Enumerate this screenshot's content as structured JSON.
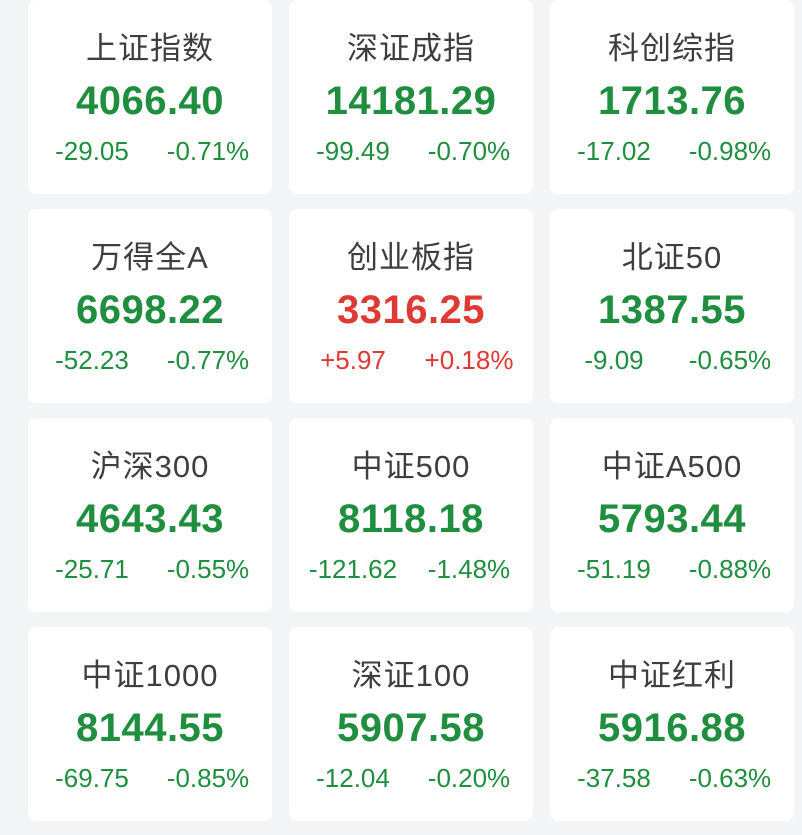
{
  "page": {
    "background_color": "#f3f4f6",
    "card_background_color": "#ffffff"
  },
  "colors": {
    "down_green": "#1f8e3e",
    "up_red": "#de3a33",
    "index_name_text": "#3e3e3e"
  },
  "indices": [
    {
      "name": "上证指数",
      "value": "4066.40",
      "change": "-29.05",
      "change_pct": "-0.71%",
      "direction": "down"
    },
    {
      "name": "深证成指",
      "value": "14181.29",
      "change": "-99.49",
      "change_pct": "-0.70%",
      "direction": "down"
    },
    {
      "name": "科创综指",
      "value": "1713.76",
      "change": "-17.02",
      "change_pct": "-0.98%",
      "direction": "down"
    },
    {
      "name": "万得全A",
      "value": "6698.22",
      "change": "-52.23",
      "change_pct": "-0.77%",
      "direction": "down"
    },
    {
      "name": "创业板指",
      "value": "3316.25",
      "change": "+5.97",
      "change_pct": "+0.18%",
      "direction": "up"
    },
    {
      "name": "北证50",
      "value": "1387.55",
      "change": "-9.09",
      "change_pct": "-0.65%",
      "direction": "down"
    },
    {
      "name": "沪深300",
      "value": "4643.43",
      "change": "-25.71",
      "change_pct": "-0.55%",
      "direction": "down"
    },
    {
      "name": "中证500",
      "value": "8118.18",
      "change": "-121.62",
      "change_pct": "-1.48%",
      "direction": "down"
    },
    {
      "name": "中证A500",
      "value": "5793.44",
      "change": "-51.19",
      "change_pct": "-0.88%",
      "direction": "down"
    },
    {
      "name": "中证1000",
      "value": "8144.55",
      "change": "-69.75",
      "change_pct": "-0.85%",
      "direction": "down"
    },
    {
      "name": "深证100",
      "value": "5907.58",
      "change": "-12.04",
      "change_pct": "-0.20%",
      "direction": "down"
    },
    {
      "name": "中证红利",
      "value": "5916.88",
      "change": "-37.58",
      "change_pct": "-0.63%",
      "direction": "down"
    }
  ]
}
